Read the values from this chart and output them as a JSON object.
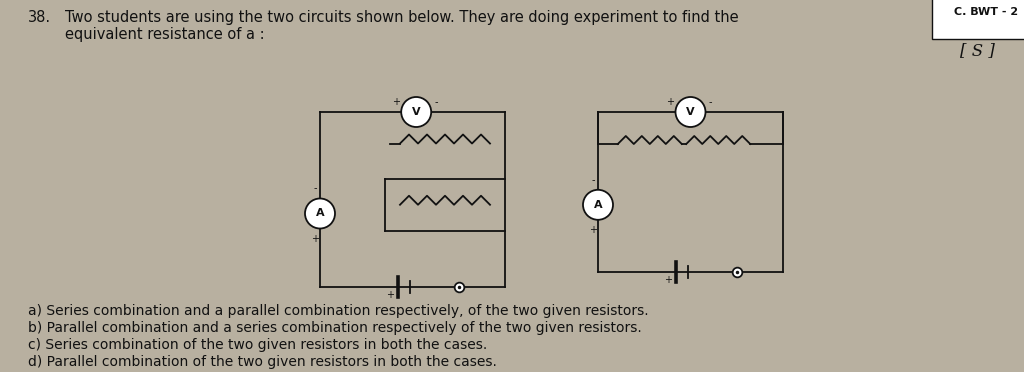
{
  "bg_color": "#b8b0a0",
  "question_number": "38.",
  "question_text": "Two students are using the two circuits shown below. They are doing experiment to find the\nequivalent resistance of a :",
  "score_text": "[ S ]",
  "header_text": "C. BWT - 2",
  "options": [
    "a) Series combination and a parallel combination respectively, of the two given resistors.",
    "b) Parallel combination and a series combination respectively of the two given resistors.",
    "c) Series combination of the two given resistors in both the cases.",
    "d) Parallel combination of the two given resistors in both the cases."
  ],
  "text_color": "#111111",
  "font_size_question": 10.5,
  "font_size_options": 10.0
}
